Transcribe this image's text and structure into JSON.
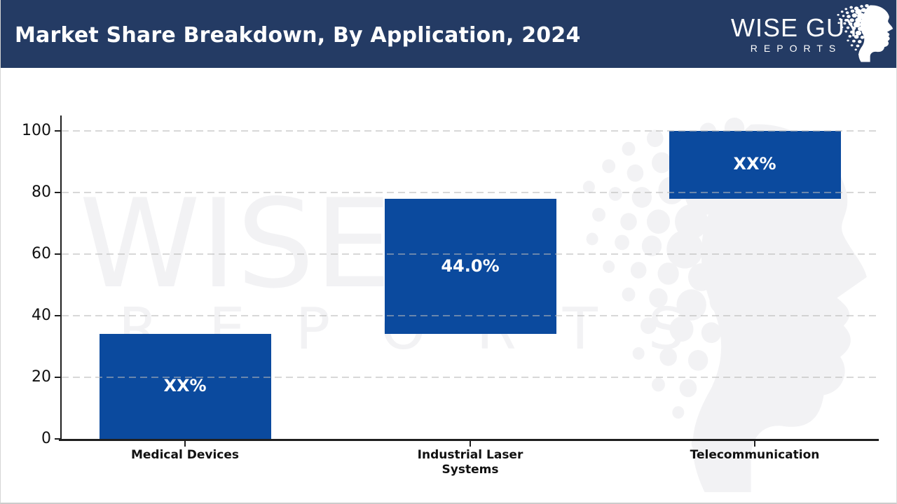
{
  "header": {
    "title": "Market Share Breakdown, By Application, 2024",
    "logo": {
      "line1": "WISE GUY",
      "line2": "REPORTS"
    }
  },
  "watermark": {
    "line1": "WISE",
    "line2": "REPORTS"
  },
  "chart_data": {
    "type": "bar",
    "subtype": "stacked-progression-waterfall",
    "title": "Market Share Breakdown, By Application, 2024",
    "categories": [
      "Medical Devices",
      "Industrial Laser Systems",
      "Telecommunication"
    ],
    "bars": [
      {
        "category_lines": [
          "Medical Devices"
        ],
        "label": "XX%",
        "start": 0,
        "end": 34
      },
      {
        "category_lines": [
          "Industrial Laser",
          "Systems"
        ],
        "label": "44.0%",
        "start": 34,
        "end": 78
      },
      {
        "category_lines": [
          "Telecommunication"
        ],
        "label": "XX%",
        "start": 78,
        "end": 100
      }
    ],
    "values_pct": [
      34,
      44,
      22
    ],
    "yticks": [
      0,
      20,
      40,
      60,
      80,
      100
    ],
    "ylim": [
      0,
      105
    ],
    "xlabel": "",
    "ylabel": "",
    "grid": "horizontal-dashed-over-bars",
    "legend": "none",
    "bar_color": "#0b4a9e",
    "bar_label_color": "#ffffff",
    "header_color": "#243b64"
  }
}
